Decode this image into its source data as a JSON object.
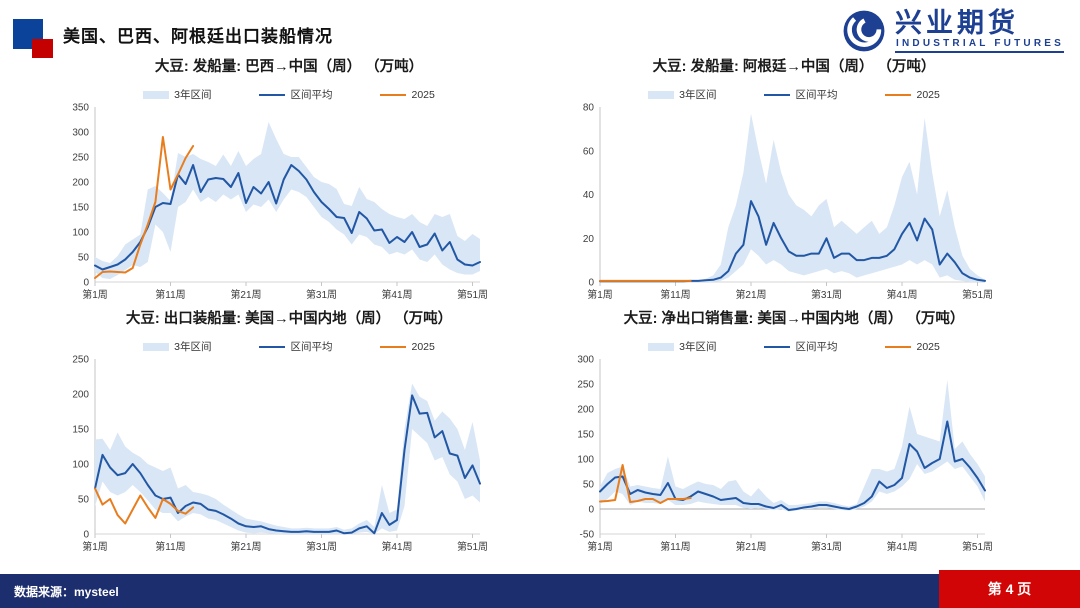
{
  "header": {
    "title": "美国、巴西、阿根廷出口装船情况"
  },
  "logo": {
    "name_cn": "兴业期货",
    "name_en": "INDUSTRIAL FUTURES"
  },
  "footer": {
    "source": "数据来源：mysteel",
    "page": "第 4 页"
  },
  "colors": {
    "band": "#d9e6f5",
    "avg_line": "#2157a4",
    "line_2025": "#e87d1e",
    "footer_bg": "#1c2e6e",
    "page_box_red": "#d10505",
    "logo_blue": "#1d4092",
    "square_blue": "#0b429a",
    "square_red": "#c40000",
    "axis_line": "#c6c6c6",
    "zero_line": "#a8a8a8"
  },
  "x_axis": {
    "tick_labels": [
      "第1周",
      "第11周",
      "第21周",
      "第31周",
      "第41周",
      "第51周"
    ],
    "tick_weeks": [
      1,
      11,
      21,
      31,
      41,
      51
    ],
    "weeks_total": 52
  },
  "chart_data": [
    {
      "type": "line",
      "title": "大豆: 发船量: 巴西→中国（周） （万吨）",
      "ylim": [
        0,
        350
      ],
      "ystep": 50,
      "grid": false,
      "legend_position": "top",
      "series": [
        {
          "name": "3年区间",
          "kind": "band",
          "upper": [
            50,
            42,
            38,
            52,
            75,
            85,
            95,
            185,
            192,
            178,
            162,
            258,
            250,
            256,
            246,
            240,
            232,
            255,
            232,
            262,
            232,
            246,
            256,
            320,
            286,
            256,
            250,
            250,
            230,
            210,
            200,
            196,
            186,
            156,
            152,
            190,
            166,
            160,
            146,
            136,
            130,
            126,
            136,
            120,
            112,
            136,
            130,
            136,
            92,
            82,
            96,
            86
          ],
          "lower": [
            20,
            8,
            6,
            14,
            24,
            34,
            30,
            40,
            115,
            100,
            60,
            150,
            160,
            185,
            160,
            170,
            160,
            175,
            165,
            175,
            140,
            155,
            150,
            165,
            140,
            165,
            185,
            180,
            170,
            150,
            130,
            120,
            105,
            95,
            75,
            95,
            90,
            75,
            70,
            55,
            60,
            55,
            65,
            45,
            40,
            55,
            35,
            25,
            18,
            15,
            15,
            22
          ]
        },
        {
          "name": "区间平均",
          "kind": "line",
          "values": [
            33,
            25,
            30,
            35,
            45,
            60,
            80,
            110,
            150,
            158,
            156,
            215,
            196,
            234,
            180,
            205,
            208,
            206,
            190,
            218,
            158,
            190,
            177,
            200,
            157,
            205,
            234,
            222,
            205,
            180,
            160,
            146,
            130,
            128,
            98,
            140,
            127,
            103,
            105,
            78,
            90,
            80,
            100,
            70,
            75,
            97,
            63,
            80,
            45,
            35,
            33,
            40
          ]
        },
        {
          "name": "2025",
          "kind": "line",
          "values": [
            8,
            20,
            21,
            20,
            19,
            28,
            75,
            115,
            160,
            290,
            185,
            215,
            248,
            272
          ]
        }
      ]
    },
    {
      "type": "line",
      "title": "大豆: 发船量: 阿根廷→中国（周） （万吨）",
      "ylim": [
        0,
        80
      ],
      "ystep": 20,
      "grid": false,
      "legend_position": "top",
      "series": [
        {
          "name": "3年区间",
          "kind": "band",
          "upper": [
            0.5,
            0.5,
            0.5,
            0.5,
            0.5,
            0.5,
            0.5,
            0.5,
            0.5,
            0.5,
            0.5,
            0.5,
            0.8,
            0.8,
            1.5,
            3,
            8,
            25,
            35,
            50,
            77,
            60,
            45,
            65,
            50,
            40,
            35,
            33,
            30,
            35,
            38,
            25,
            28,
            25,
            22,
            25,
            28,
            22,
            25,
            35,
            48,
            55,
            40,
            75,
            50,
            30,
            42,
            25,
            12,
            6,
            3,
            1
          ],
          "lower": [
            0,
            0,
            0,
            0,
            0,
            0,
            0,
            0,
            0,
            0,
            0,
            0,
            0,
            0,
            0,
            0,
            0.5,
            2,
            5,
            8,
            15,
            12,
            8,
            10,
            8,
            5,
            4,
            3,
            4,
            5,
            6,
            4,
            5,
            4,
            2,
            3,
            4,
            5,
            6,
            7,
            8,
            10,
            8,
            10,
            8,
            2,
            3,
            1,
            0.5,
            0,
            0,
            0
          ]
        },
        {
          "name": "区间平均",
          "kind": "line",
          "values": [
            0.3,
            0.3,
            0.3,
            0.3,
            0.3,
            0.3,
            0.3,
            0.3,
            0.3,
            0.3,
            0.3,
            0.3,
            0.5,
            0.5,
            0.8,
            1,
            2,
            5,
            13,
            17,
            37,
            30,
            17,
            27,
            20,
            14,
            12,
            12,
            13,
            13,
            20,
            11,
            13,
            13,
            10,
            10,
            11,
            11,
            12,
            15,
            22,
            27,
            19,
            29,
            24,
            8,
            13,
            9,
            4,
            2,
            1,
            0.5
          ],
          "note": ""
        },
        {
          "name": "2025",
          "kind": "line",
          "values": [
            0.5,
            0.5,
            0.5,
            0.5,
            0.5,
            0.5,
            0.5,
            0.5,
            0.5,
            0.5,
            0.5,
            0.5,
            0.5
          ]
        }
      ]
    },
    {
      "type": "line",
      "title": "大豆: 出口装船量: 美国→中国内地（周） （万吨）",
      "ylim": [
        0,
        250
      ],
      "ystep": 50,
      "grid": false,
      "legend_position": "top",
      "series": [
        {
          "name": "3年区间",
          "kind": "band",
          "upper": [
            135,
            136,
            120,
            145,
            125,
            116,
            110,
            100,
            95,
            90,
            95,
            65,
            70,
            60,
            58,
            55,
            50,
            42,
            35,
            28,
            22,
            20,
            18,
            15,
            12,
            10,
            8,
            8,
            9,
            8,
            8,
            8,
            10,
            6,
            8,
            15,
            20,
            10,
            70,
            30,
            35,
            150,
            215,
            196,
            190,
            162,
            175,
            165,
            150,
            120,
            160,
            105
          ],
          "lower": [
            40,
            75,
            60,
            55,
            60,
            70,
            60,
            48,
            35,
            30,
            30,
            18,
            25,
            30,
            28,
            22,
            20,
            15,
            10,
            5,
            2,
            1,
            2,
            1,
            0,
            0,
            0,
            0,
            0,
            0,
            0,
            0,
            0,
            0,
            0,
            2,
            3,
            0,
            8,
            3,
            5,
            40,
            150,
            140,
            130,
            105,
            110,
            85,
            75,
            50,
            55,
            45
          ]
        },
        {
          "name": "区间平均",
          "kind": "line",
          "values": [
            65,
            113,
            95,
            84,
            87,
            100,
            87,
            70,
            55,
            50,
            52,
            30,
            40,
            45,
            43,
            35,
            33,
            28,
            22,
            15,
            11,
            10,
            11,
            7,
            5,
            4,
            3,
            3,
            4,
            3,
            3,
            3,
            5,
            1,
            2,
            8,
            11,
            1,
            30,
            13,
            20,
            120,
            198,
            172,
            173,
            138,
            147,
            115,
            112,
            80,
            98,
            72
          ]
        },
        {
          "name": "2025",
          "kind": "line",
          "values": [
            65,
            42,
            50,
            27,
            15,
            35,
            55,
            38,
            23,
            50,
            43,
            33,
            29,
            38
          ]
        }
      ]
    },
    {
      "type": "line",
      "title": "大豆: 净出口销售量: 美国→中国内地（周） （万吨）",
      "ylim": [
        -50,
        300
      ],
      "ystep": 50,
      "grid": false,
      "legend_position": "top",
      "series": [
        {
          "name": "3年区间",
          "kind": "band",
          "upper": [
            45,
            72,
            80,
            85,
            45,
            48,
            45,
            42,
            40,
            105,
            45,
            40,
            48,
            55,
            50,
            48,
            40,
            55,
            58,
            35,
            25,
            42,
            25,
            12,
            18,
            8,
            8,
            10,
            12,
            15,
            15,
            12,
            8,
            5,
            10,
            45,
            80,
            80,
            75,
            80,
            125,
            205,
            150,
            145,
            140,
            135,
            258,
            120,
            135,
            110,
            90,
            65
          ],
          "lower": [
            10,
            20,
            35,
            30,
            8,
            15,
            12,
            12,
            10,
            18,
            8,
            8,
            10,
            15,
            12,
            10,
            8,
            8,
            8,
            2,
            0,
            2,
            0,
            -2,
            0,
            -5,
            -3,
            0,
            0,
            2,
            2,
            0,
            -2,
            -3,
            0,
            5,
            15,
            35,
            30,
            35,
            45,
            60,
            90,
            70,
            75,
            85,
            95,
            80,
            85,
            65,
            45,
            15
          ]
        },
        {
          "name": "区间平均",
          "kind": "line",
          "values": [
            35,
            50,
            63,
            65,
            30,
            38,
            33,
            30,
            28,
            52,
            20,
            18,
            25,
            35,
            30,
            25,
            18,
            20,
            22,
            12,
            10,
            10,
            5,
            2,
            8,
            -2,
            0,
            3,
            5,
            8,
            8,
            5,
            2,
            0,
            5,
            12,
            25,
            55,
            42,
            48,
            62,
            130,
            115,
            82,
            92,
            100,
            175,
            95,
            100,
            83,
            62,
            37
          ]
        },
        {
          "name": "2025",
          "kind": "line",
          "values": [
            15,
            16,
            18,
            88,
            14,
            16,
            20,
            20,
            12,
            20,
            20,
            20,
            22
          ]
        }
      ]
    }
  ]
}
